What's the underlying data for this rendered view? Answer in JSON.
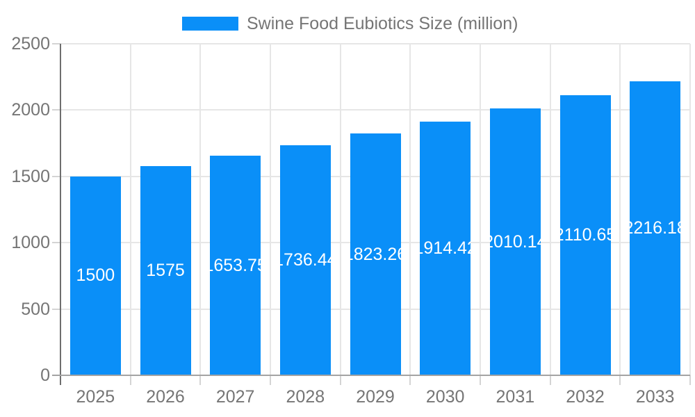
{
  "legend": {
    "label": "Swine Food Eubiotics Size (million)"
  },
  "chart_data": {
    "type": "bar",
    "title": "Swine Food Eubiotics Size (million)",
    "categories": [
      "2025",
      "2026",
      "2027",
      "2028",
      "2029",
      "2030",
      "2031",
      "2032",
      "2033"
    ],
    "values": [
      1500,
      1575,
      1653.75,
      1736.44,
      1823.26,
      1914.42,
      2010.14,
      2110.65,
      2216.18
    ],
    "bar_labels": [
      "1500",
      "1575",
      "1653.75",
      "1736.44",
      "1823.26",
      "1914.42",
      "2010.14",
      "2110.65",
      "2216.18"
    ],
    "xlabel": "",
    "ylabel": "",
    "ylim": [
      0,
      2500
    ],
    "yticks": [
      0,
      500,
      1000,
      1500,
      2000,
      2500
    ],
    "legend_position": "top",
    "grid": true
  },
  "colors": {
    "bar": "#0a8ff8",
    "axis_text": "#757575",
    "bar_label_text": "#ffffff",
    "gridline": "#e6e6e6",
    "tick": "#d4d4d4",
    "baseline": "#a3a3a3",
    "axis_line": "#6e6e6e",
    "background": "#ffffff"
  }
}
